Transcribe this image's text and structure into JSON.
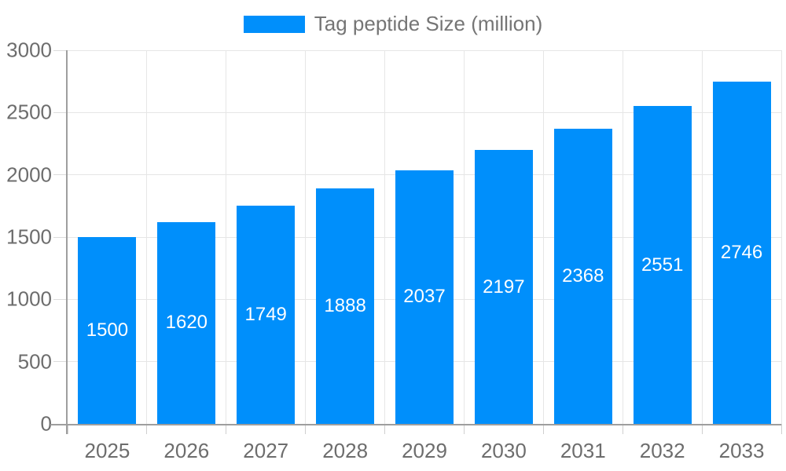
{
  "chart_data": {
    "type": "bar",
    "title": "Tag peptide Size (million)",
    "categories": [
      "2025",
      "2026",
      "2027",
      "2028",
      "2029",
      "2030",
      "2031",
      "2032",
      "2033"
    ],
    "values": [
      1500,
      1620,
      1749,
      1888,
      2037,
      2197,
      2368,
      2551,
      2746
    ],
    "xlabel": "",
    "ylabel": "",
    "ylim": [
      0,
      3000
    ],
    "ytick_step": 500,
    "ytick_labels": [
      "0",
      "500",
      "1000",
      "1500",
      "2000",
      "2500",
      "3000"
    ],
    "grid": true,
    "legend": {
      "position": "top",
      "items": [
        {
          "label": "Tag peptide Size (million)",
          "color": "#008FFB"
        }
      ]
    },
    "colors": {
      "bar": "#008FFB",
      "value_label": "#ffffff",
      "tick_label": "#6d6d6d",
      "legend_text": "#757575",
      "gridline": "#e6e6e6",
      "axis": "#9e9e9e"
    }
  }
}
